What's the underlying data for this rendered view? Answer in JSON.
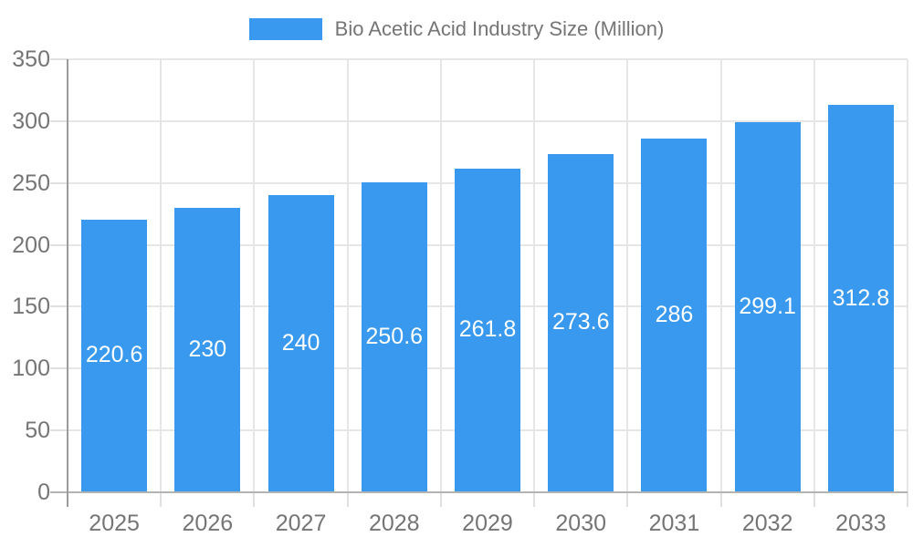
{
  "legend": {
    "label": "Bio Acetic Acid Industry Size (Million)"
  },
  "chart_data": {
    "type": "bar",
    "title": "Bio Acetic Acid Industry Size (Million)",
    "categories": [
      "2025",
      "2026",
      "2027",
      "2028",
      "2029",
      "2030",
      "2031",
      "2032",
      "2033"
    ],
    "values": [
      220.6,
      230,
      240,
      250.6,
      261.8,
      273.6,
      286,
      299.1,
      312.8
    ],
    "xlabel": "",
    "ylabel": "",
    "ylim": [
      0,
      350
    ],
    "ytick_step": 50,
    "grid": true,
    "legend_position": "top-center",
    "colors": {
      "bar": "#3999ee",
      "grid": "#e6e6e6",
      "axis_y": "#9b9b9b",
      "axis_x": "#b3b3b3",
      "tick": "#e0e0e0",
      "label": "#757575",
      "value_label": "#ffffff"
    }
  }
}
